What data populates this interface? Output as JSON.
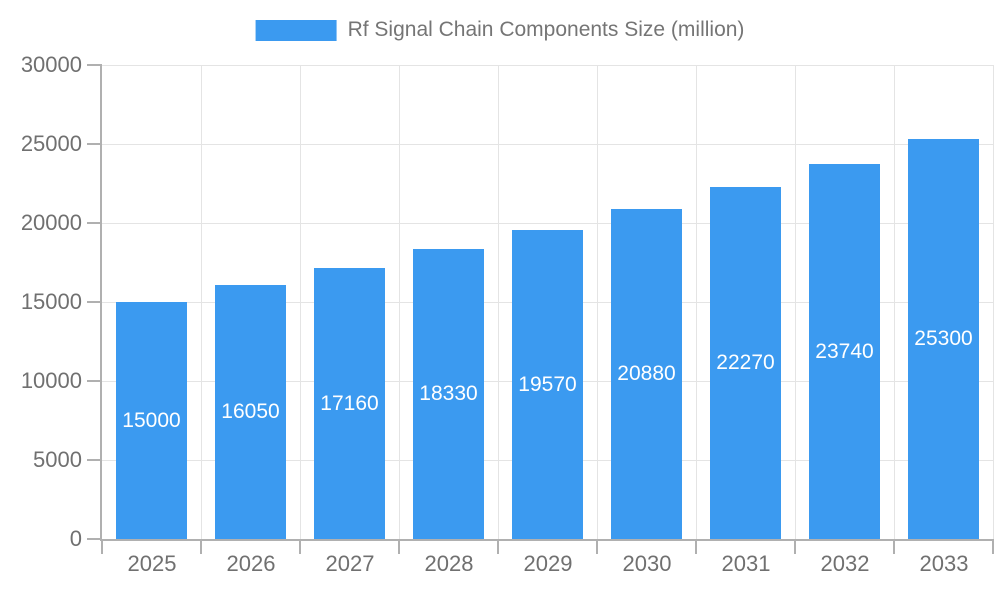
{
  "chart_data": {
    "type": "bar",
    "title": "Rf Signal Chain Components Size (million)",
    "legend": [
      "Rf Signal Chain Components Size (million)"
    ],
    "legend_position": "top-center",
    "categories": [
      "2025",
      "2026",
      "2027",
      "2028",
      "2029",
      "2030",
      "2031",
      "2032",
      "2033"
    ],
    "values": [
      15000,
      16050,
      17160,
      18330,
      19570,
      20880,
      22270,
      23740,
      25300
    ],
    "bar_value_labels_shown": true,
    "xlabel": "",
    "ylabel": "",
    "ylim": [
      0,
      30000
    ],
    "yticks": [
      0,
      5000,
      10000,
      15000,
      20000,
      25000,
      30000
    ],
    "grid": true
  },
  "colors": {
    "bar": "#3B9AF0",
    "bar_label": "#FFFFFF",
    "legend_text": "#757575",
    "tick_text": "#707070",
    "axis": "#B0B0B0",
    "grid": "#E4E4E4",
    "background": "#FFFFFF"
  }
}
